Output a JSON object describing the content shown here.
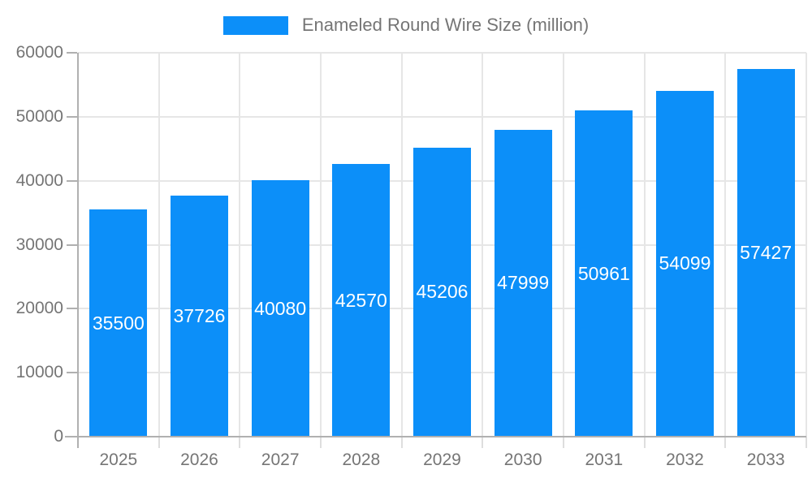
{
  "chart_data": {
    "type": "bar",
    "title": "Enameled Round Wire Size (million)",
    "categories": [
      "2025",
      "2026",
      "2027",
      "2028",
      "2029",
      "2030",
      "2031",
      "2032",
      "2033"
    ],
    "values": [
      35500,
      37726,
      40080,
      42570,
      45206,
      47999,
      50961,
      54099,
      57427
    ],
    "bar_value_labels": [
      "35500",
      "37726",
      "40080",
      "42570",
      "45206",
      "47999",
      "50961",
      "54099",
      "57427"
    ],
    "xlabel": "",
    "ylabel": "",
    "ylim": [
      0,
      60000
    ],
    "ytick_step": 10000,
    "ytick_labels": [
      "0",
      "10000",
      "20000",
      "30000",
      "40000",
      "50000",
      "60000"
    ],
    "grid": true,
    "legend_position": "top",
    "colors": {
      "bar": "#0c8ff9",
      "bar_label_text": "#ffffff",
      "axis_line": "#b0b0b0",
      "grid_line": "#e6e6e6",
      "minor_tick": "#dedede",
      "axis_text": "#757575",
      "legend_text": "#757575",
      "background": "#ffffff"
    }
  },
  "legend": {
    "label": "Enameled Round Wire Size (million)"
  }
}
